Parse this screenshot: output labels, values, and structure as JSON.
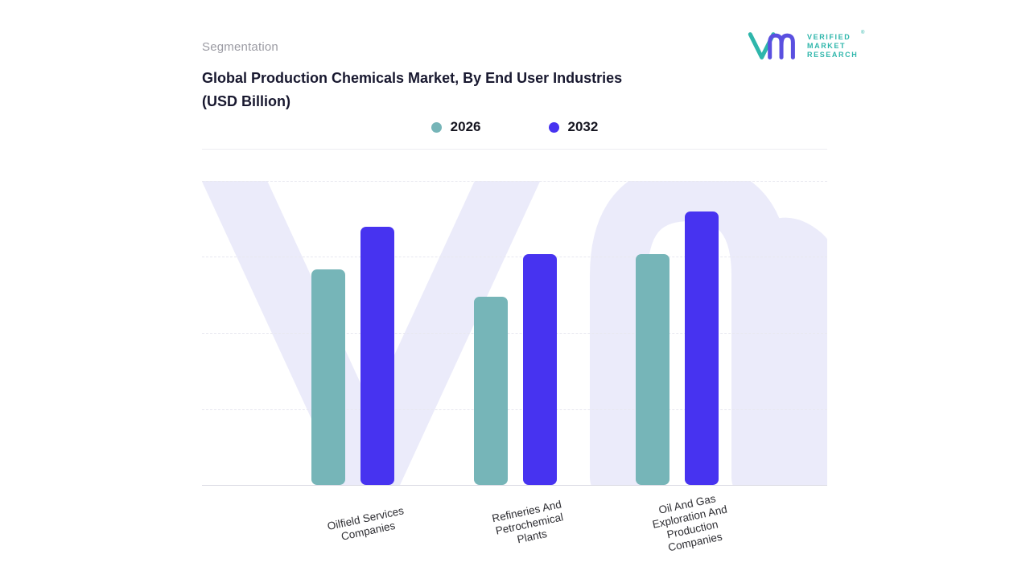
{
  "page": {
    "section_label": "Segmentation"
  },
  "logo": {
    "brand_lines": [
      "VERIFIED",
      "MARKET",
      "RESEARCH"
    ],
    "registered": "®",
    "teal": "#2eb6ab",
    "purple": "#5a50e0"
  },
  "colors": {
    "series_2026": "#76b5b8",
    "series_2032": "#4733f0",
    "watermark": "#ebebfa",
    "gridline": "#e8e8f0",
    "axis": "#d9d9e2",
    "title_text": "#18182f",
    "label_text": "#2e2e33",
    "section_label_text": "#9b9ba3"
  },
  "chart_data": {
    "type": "bar",
    "title": "Global Production Chemicals Market, By End User Industries (USD Billion)",
    "title_lines": [
      "Global Production Chemicals Market, By End User Industries",
      "(USD Billion)"
    ],
    "xlabel": "",
    "ylabel": "",
    "categories": [
      "Oilfield Services\nCompanies",
      "Refineries And\nPetrochemical\nPlants",
      "Oil And Gas\nExploration And\nProduction\nCompanies"
    ],
    "series": [
      {
        "name": "2026",
        "color": "#76b5b8",
        "values": [
          71,
          62,
          76
        ]
      },
      {
        "name": "2032",
        "color": "#4733f0",
        "values": [
          85,
          76,
          90
        ]
      }
    ],
    "ylim": [
      0,
      100
    ],
    "y_axis_tick_labels_visible": false,
    "value_labels_visible": false,
    "grid": "horizontal-dashed",
    "legend_position": "top-center",
    "x_label_rotation_deg": -12,
    "units": "USD Billion"
  }
}
